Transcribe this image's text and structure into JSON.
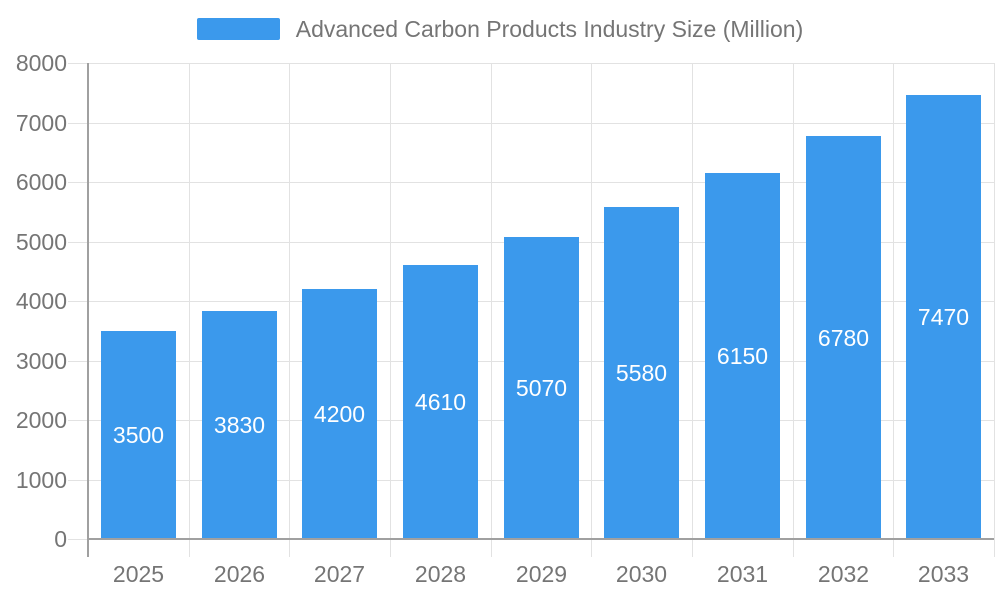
{
  "legend": {
    "label": "Advanced Carbon Products Industry Size (Million)"
  },
  "colors": {
    "bar": "#3B99EC",
    "grid": "#E2E2E2",
    "axis": "#A0A0A0",
    "text": "#757575",
    "value_label": "#FFFFFF",
    "background": "#FFFFFF"
  },
  "chart_data": {
    "type": "bar",
    "title": "",
    "legend_entries": [
      "Advanced Carbon Products Industry Size (Million)"
    ],
    "legend_position": "top-center",
    "categories": [
      "2025",
      "2026",
      "2027",
      "2028",
      "2029",
      "2030",
      "2031",
      "2032",
      "2033"
    ],
    "series": [
      {
        "name": "Advanced Carbon Products Industry Size (Million)",
        "values": [
          3500,
          3830,
          4200,
          4610,
          5070,
          5580,
          6150,
          6780,
          7470
        ]
      }
    ],
    "bar_value_labels": [
      "3500",
      "3830",
      "4200",
      "4610",
      "5070",
      "5580",
      "6150",
      "6780",
      "7470"
    ],
    "xlabel": "",
    "ylabel": "",
    "ylim": [
      0,
      8000
    ],
    "ytick_step": 1000,
    "yticks": [
      0,
      1000,
      2000,
      3000,
      4000,
      5000,
      6000,
      7000,
      8000
    ],
    "grid": true
  }
}
